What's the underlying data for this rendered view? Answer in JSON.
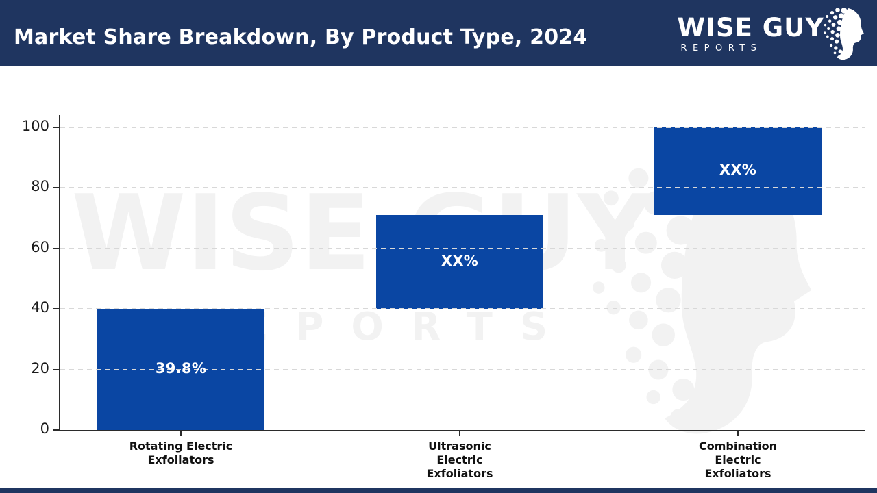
{
  "header": {
    "title": "Market Share Breakdown, By Product Type, 2024"
  },
  "logo": {
    "name": "WISE GUY",
    "subtitle": "REPORTS"
  },
  "colors": {
    "header_navy": "#1f3560",
    "bar_blue": "#0a46a3",
    "watermark_gray": "#f2f2f2",
    "gridline_gray": "#d8d8d8"
  },
  "chart_data": {
    "type": "bar",
    "subtype": "waterfall-stacked-segments",
    "title": "Market Share Breakdown, By Product Type, 2024",
    "categories": [
      "Rotating Electric Exfoliators",
      "Ultrasonic Electric Exfoliators",
      "Combination Electric Exfoliators"
    ],
    "category_label_lines": [
      [
        "Rotating Electric",
        "Exfoliators"
      ],
      [
        "Ultrasonic",
        "Electric",
        "Exfoliators"
      ],
      [
        "Combination",
        "Electric",
        "Exfoliators"
      ]
    ],
    "segments": [
      {
        "category": "Rotating Electric Exfoliators",
        "start": 0,
        "end": 39.8,
        "label": "39.8%"
      },
      {
        "category": "Ultrasonic Electric Exfoliators",
        "start": 39.8,
        "end": 71,
        "label": "XX%"
      },
      {
        "category": "Combination Electric Exfoliators",
        "start": 71,
        "end": 100,
        "label": "XX%"
      }
    ],
    "y_axis": {
      "ticks": [
        0,
        20,
        40,
        60,
        80,
        100
      ],
      "range": [
        0,
        105
      ]
    },
    "x_axis_label": "",
    "y_axis_label": "",
    "grid": "horizontal-dashed",
    "legend": "none",
    "bar_color": "#0a46a3",
    "bar_label_color": "#ffffff"
  }
}
